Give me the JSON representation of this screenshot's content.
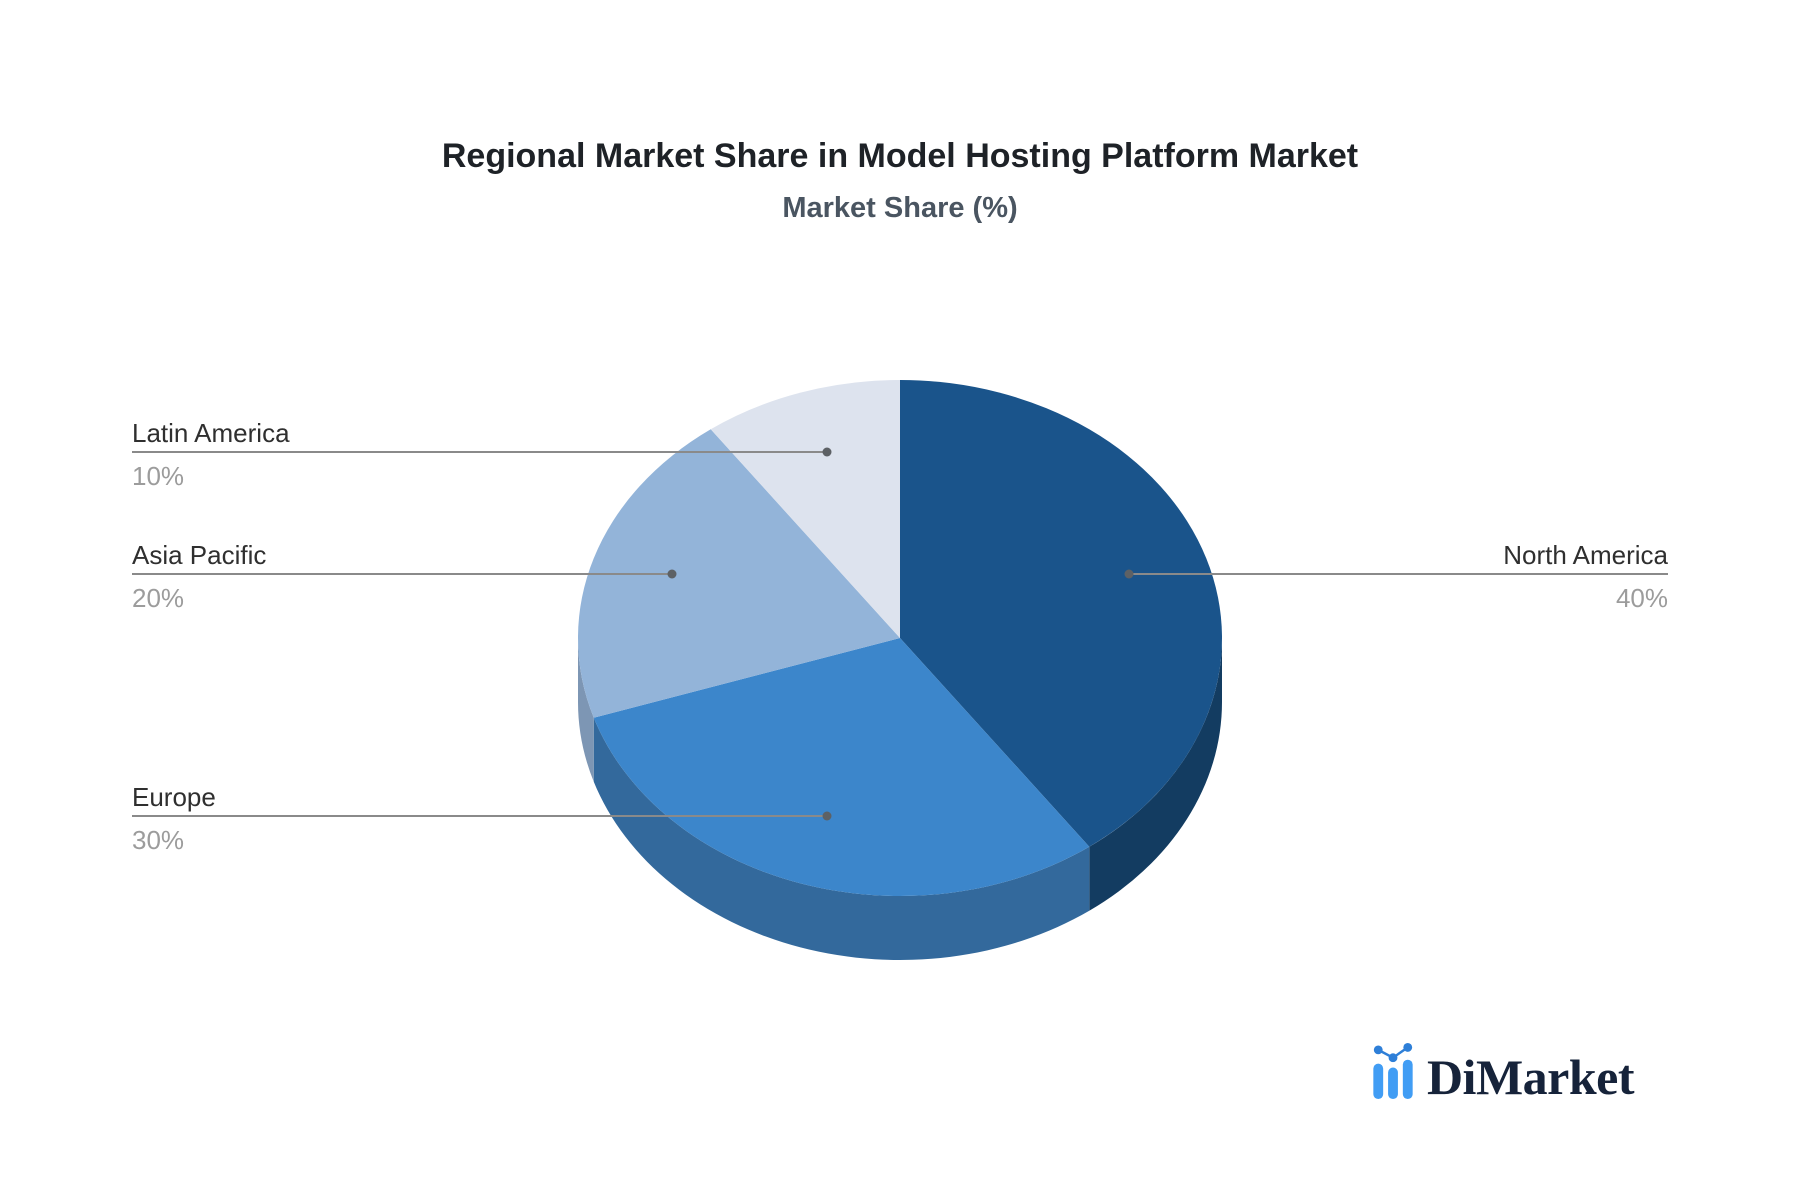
{
  "chart_data": {
    "type": "pie",
    "style": "3d",
    "title": "Regional Market Share in Model Hosting Platform Market",
    "subtitle": "Market Share (%)",
    "unit": "%",
    "start_angle": 0,
    "direction": "clockwise",
    "legend_position": "callout-labels",
    "slices": [
      {
        "label": "North America",
        "value": 40,
        "pct_label": "40%",
        "color": "#1a548b",
        "side_color": "#133c61",
        "callout_side": "right"
      },
      {
        "label": "Europe",
        "value": 30,
        "pct_label": "30%",
        "color": "#3c86cb",
        "side_color": "#33699c",
        "callout_side": "left"
      },
      {
        "label": "Asia Pacific",
        "value": 20,
        "pct_label": "20%",
        "color": "#93b4d9",
        "side_color": "#7d96b4",
        "callout_side": "left"
      },
      {
        "label": "Latin America",
        "value": 10,
        "pct_label": "10%",
        "color": "#dde3ee",
        "side_color": "#c5cede",
        "callout_side": "left"
      }
    ]
  },
  "branding": {
    "logo_text": "DiMarket",
    "icon": "bar-line-chart-icon",
    "icon_bar_color": "#419df4",
    "icon_line_color": "#2e7fd8",
    "text_color": "#16233a"
  },
  "colors": {
    "title": "#1e2227",
    "subtitle": "#4a5561",
    "label_text": "#2f2f2f",
    "pct_text": "#9c9c9c",
    "callout_line": "#8a8a8a",
    "callout_dot": "#5d6165",
    "background": "#ffffff"
  }
}
